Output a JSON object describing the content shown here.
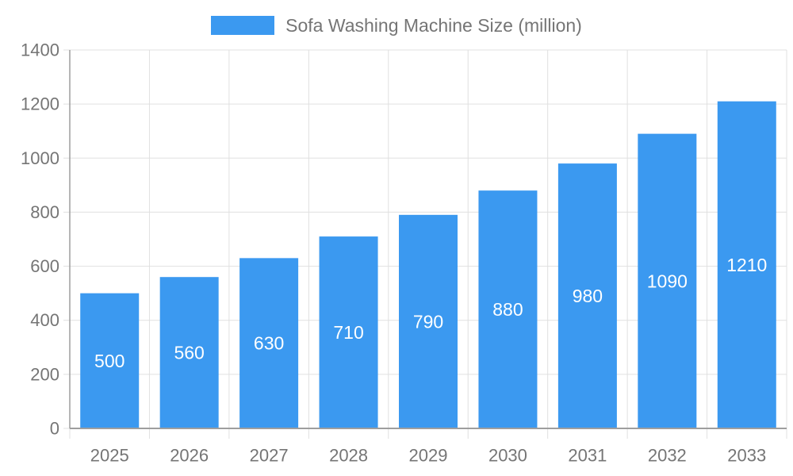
{
  "chart_data": {
    "type": "bar",
    "title": "Sofa Washing Machine Size (million)",
    "categories": [
      "2025",
      "2026",
      "2027",
      "2028",
      "2029",
      "2030",
      "2031",
      "2032",
      "2033"
    ],
    "values": [
      500,
      560,
      630,
      710,
      790,
      880,
      980,
      1090,
      1210
    ],
    "xlabel": "",
    "ylabel": "",
    "ylim": [
      0,
      1400
    ],
    "yticks": [
      0,
      200,
      400,
      600,
      800,
      1000,
      1200,
      1400
    ],
    "grid": true,
    "legend_position": "top-center",
    "bar_value_labels": "inside-center"
  },
  "legend": {
    "label": "Sofa Washing Machine Size (million)"
  },
  "colors": {
    "bar": "#3b99f0",
    "bar_label": "#ffffff",
    "axis_text": "#757575",
    "grid_line": "#e0e0e0",
    "axis_line": "#9e9e9e",
    "background": "#ffffff"
  }
}
